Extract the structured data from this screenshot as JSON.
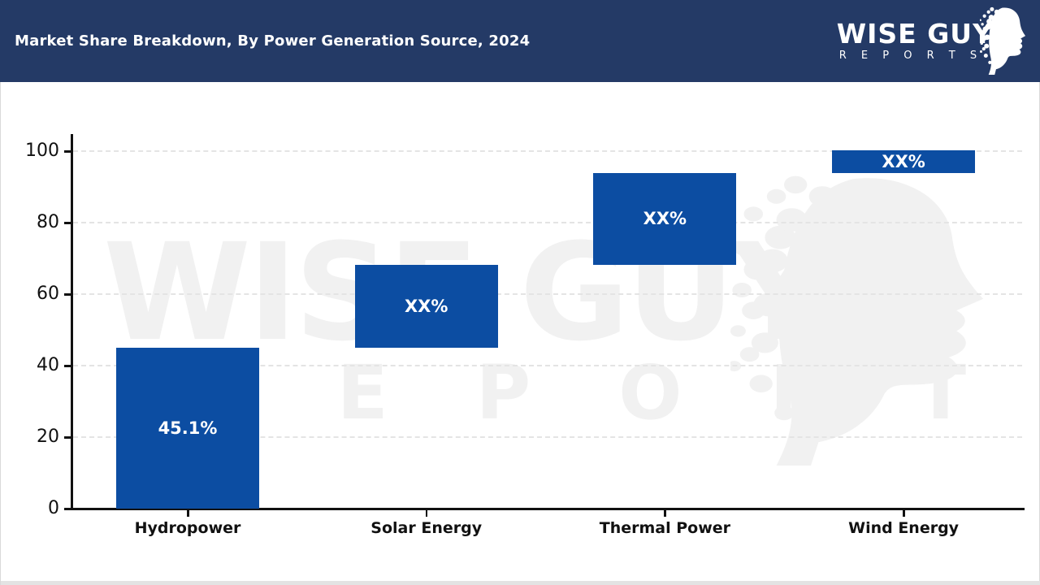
{
  "header": {
    "title": "Market Share Breakdown, By Power Generation Source, 2024",
    "logo": {
      "wordmark": "WISE GUY",
      "subtext": "R E P O R T S"
    },
    "bg_color": "#243A66"
  },
  "watermark": {
    "line1": "WISE GUY",
    "line2": "R E P O R T S"
  },
  "chart_data": {
    "type": "bar",
    "subtype": "waterfall",
    "title": "Market Share Breakdown, By Power Generation Source, 2024",
    "categories": [
      "Hydropower",
      "Solar Energy",
      "Thermal Power",
      "Wind Energy"
    ],
    "segments": [
      {
        "category": "Hydropower",
        "start": 0,
        "end": 45.1,
        "label": "45.1%"
      },
      {
        "category": "Solar Energy",
        "start": 45.1,
        "end": 68.2,
        "label": "XX%"
      },
      {
        "category": "Thermal Power",
        "start": 68.2,
        "end": 93.9,
        "label": "XX%"
      },
      {
        "category": "Wind Energy",
        "start": 93.9,
        "end": 100.3,
        "label": "XX%"
      }
    ],
    "xlabel": "",
    "ylabel": "",
    "y_ticks": [
      0,
      20,
      40,
      60,
      80,
      100
    ],
    "ylim": [
      0,
      105
    ],
    "grid": "horizontal dashed",
    "legend": "none",
    "bar_color": "#0C4DA2",
    "value_label_color": "#ffffff"
  }
}
